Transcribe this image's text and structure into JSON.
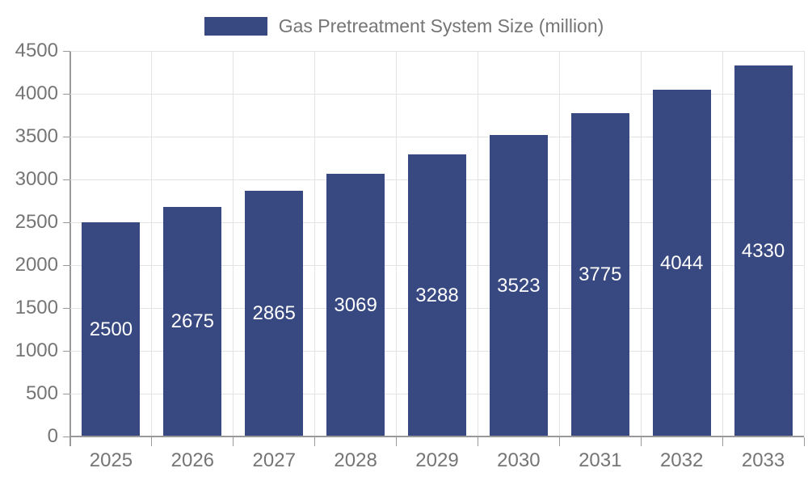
{
  "legend": {
    "label": "Gas Pretreatment System Size (million)"
  },
  "chart_data": {
    "type": "bar",
    "title": "",
    "categories": [
      "2025",
      "2026",
      "2027",
      "2028",
      "2029",
      "2030",
      "2031",
      "2032",
      "2033"
    ],
    "series": [
      {
        "name": "Gas Pretreatment System Size (million)",
        "values": [
          2500,
          2675,
          2865,
          3069,
          3288,
          3523,
          3775,
          4044,
          4330
        ]
      }
    ],
    "xlabel": "",
    "ylabel": "",
    "ylim": [
      0,
      4500
    ],
    "ytick_step": 500,
    "grid": true,
    "legend_position": "top-center",
    "bar_color": "#384880",
    "value_label_color": "#ffffff",
    "axis_text_color": "#757575",
    "grid_color": "#e3e3e3",
    "axis_line_color": "#999999",
    "background_color": "#ffffff"
  }
}
